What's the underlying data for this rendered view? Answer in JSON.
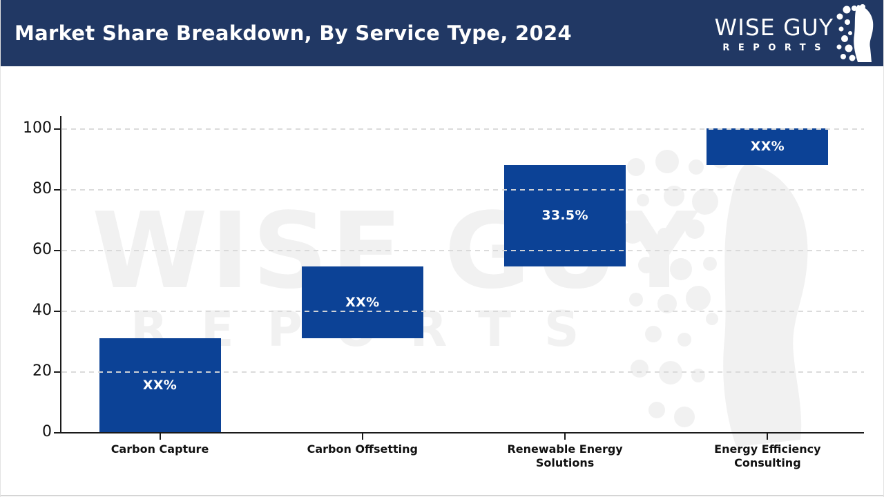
{
  "header": {
    "title": "Market Share Breakdown, By Service Type, 2024",
    "logo_text": "WISE GUY",
    "logo_sub": "REPORTS"
  },
  "watermark": {
    "line1": "WISE GUY",
    "line2": "REPORTS"
  },
  "chart_data": {
    "type": "bar",
    "subtype": "waterfall",
    "title": "Market Share Breakdown, By Service Type, 2024",
    "categories": [
      "Carbon Capture",
      "Carbon Offsetting",
      "Renewable Energy Solutions",
      "Energy Efficiency Consulting"
    ],
    "series": [
      {
        "name": "Carbon Capture",
        "start": 0,
        "end": 31,
        "label": "XX%"
      },
      {
        "name": "Carbon Offsetting",
        "start": 31,
        "end": 54.5,
        "label": "XX%"
      },
      {
        "name": "Renewable Energy Solutions",
        "start": 54.5,
        "end": 88,
        "label": "33.5%"
      },
      {
        "name": "Energy Efficiency Consulting",
        "start": 88,
        "end": 100,
        "label": "XX%"
      }
    ],
    "xlabel": "",
    "ylabel": "",
    "ylim": [
      0,
      100
    ],
    "yticks": [
      0,
      20,
      40,
      60,
      80,
      100
    ],
    "grid": "horizontal-dashed",
    "legend": "none",
    "bar_color": "#0c4296"
  },
  "colors": {
    "header_bg": "#213864",
    "bar": "#0c4296",
    "grid": "#d9d9d9",
    "axis": "#1a1a1a",
    "watermark": "#f1f1f1",
    "value_label": "#ffffff"
  }
}
